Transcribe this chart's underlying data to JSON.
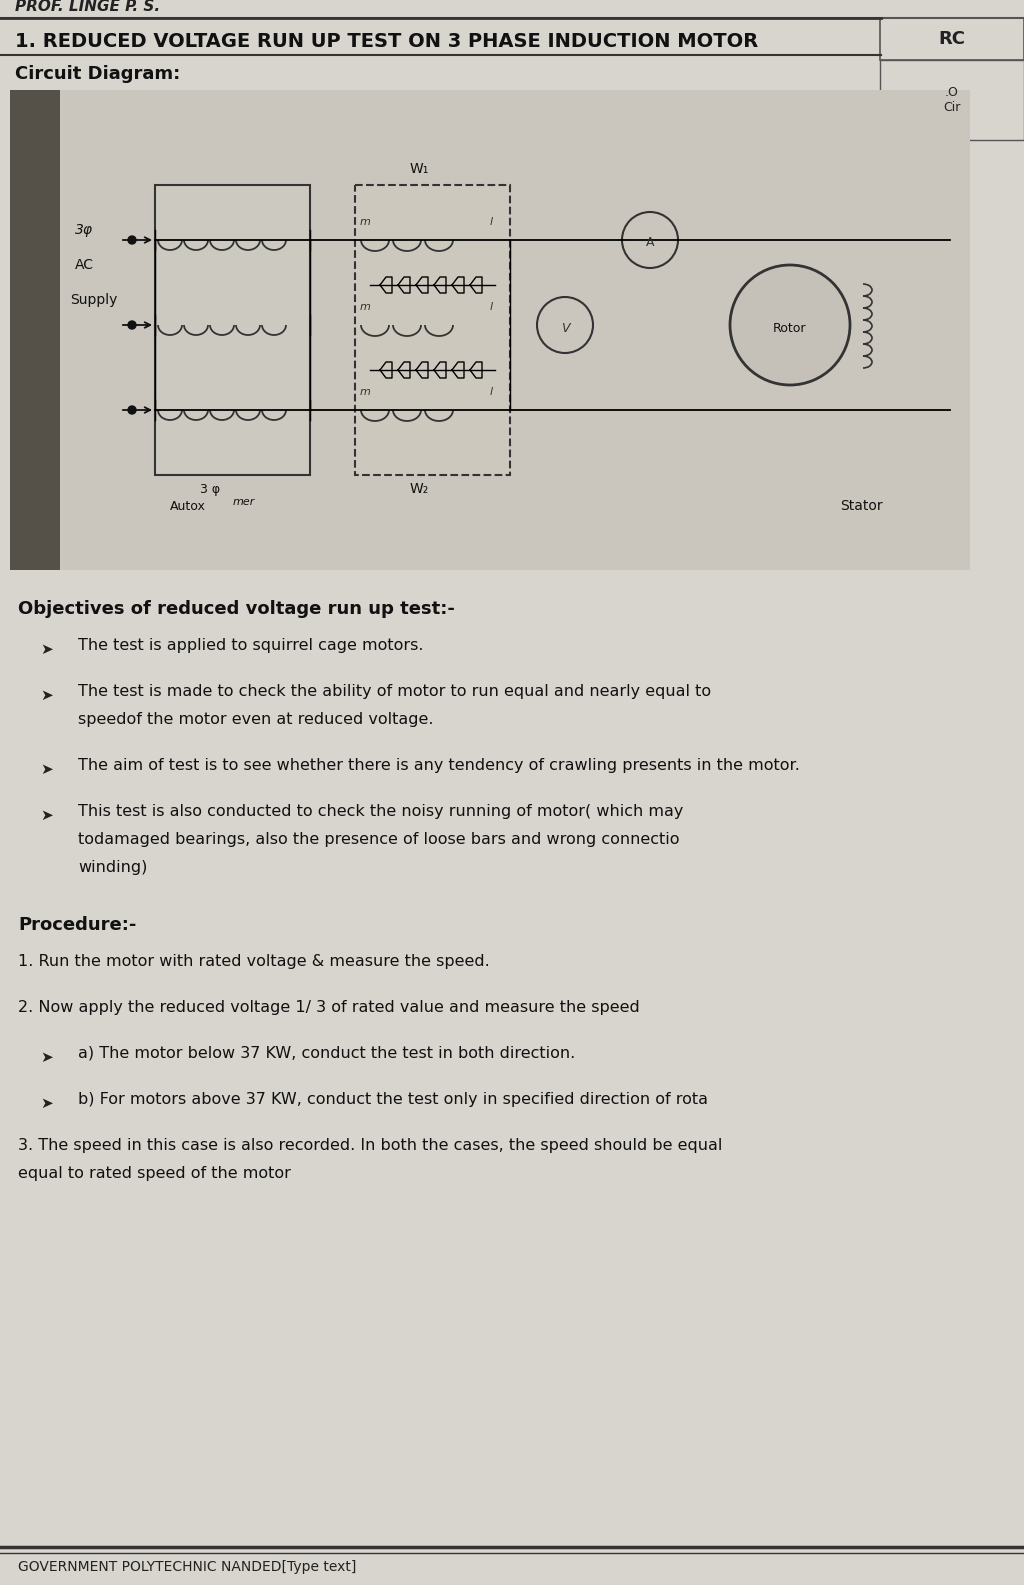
{
  "header_text": "PROF. LINGE P. S.",
  "title": "1. REDUCED VOLTAGE RUN UP TEST ON 3 PHASE INDUCTION MOTOR",
  "subtitle": "Circuit Diagram:",
  "page_bg": "#d8d5ce",
  "diagram_bg": "#cac6be",
  "text_color": "#1a1a1a",
  "dark_strip_color": "#4a4844",
  "objectives_heading": "Objectives of reduced voltage run up test:-",
  "objectives": [
    "The test is applied to squirrel cage motors.",
    "The test is made to check the ability of motor to run equal and nearly equal to\nspeedof the motor even at reduced voltage.",
    "The aim of test is to see whether there is any tendency of crawling presents in the motor.",
    "This test is also conducted to check the noisy running of motor( which may\ntodamaged bearings, also the presence of loose bars and wrong connectio\nwinding)"
  ],
  "procedure_heading": "Procedure:-",
  "procedure_items": [
    {
      "indent": false,
      "text": "1. Run the motor with rated voltage & measure the speed."
    },
    {
      "indent": false,
      "text": "2. Now apply the reduced voltage 1/ 3 of rated value and measure the speed"
    },
    {
      "indent": true,
      "text": "a) The motor below 37 KW, conduct the test in both direction."
    },
    {
      "indent": true,
      "text": "b) For motors above 37 KW, conduct the test only in specified direction of rota"
    },
    {
      "indent": false,
      "text": "3. The speed in this case is also recorded. In both the cases, the speed should be equal\nequal to rated speed of the motor"
    }
  ],
  "footer_text": "GOVERNMENT POLYTECHNIC NANDED[Type text]",
  "right_header": "RC",
  "right_col": ".O\nCir"
}
